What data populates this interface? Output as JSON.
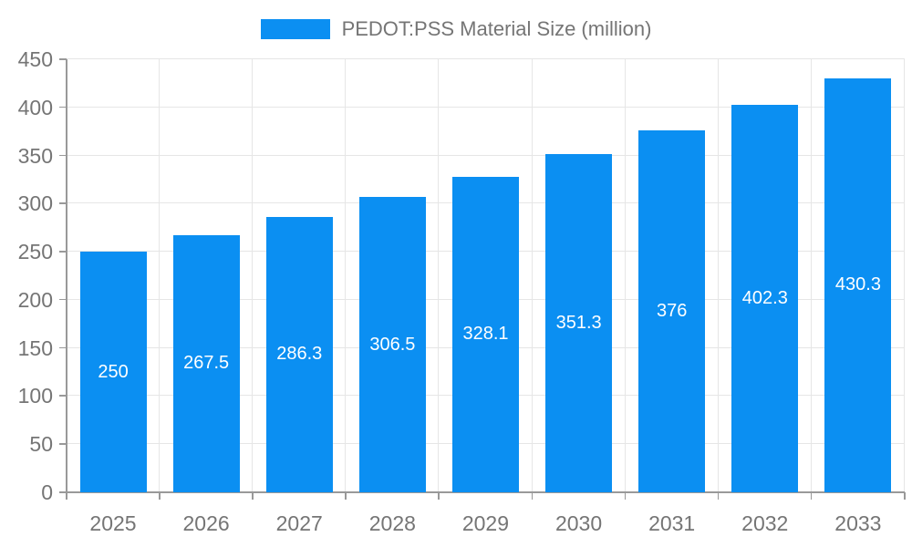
{
  "legend": {
    "label": "PEDOT:PSS Material Size (million)"
  },
  "colors": {
    "bar": "#0b8ff2",
    "bar_label": "#ffffff",
    "axis": "#999999",
    "grid": "#e6e6e6",
    "text": "#757575"
  },
  "chart_data": {
    "type": "bar",
    "title": "PEDOT:PSS Material Size (million)",
    "categories": [
      "2025",
      "2026",
      "2027",
      "2028",
      "2029",
      "2030",
      "2031",
      "2032",
      "2033"
    ],
    "values": [
      250,
      267.5,
      286.3,
      306.5,
      328.1,
      351.3,
      376,
      402.3,
      430.3
    ],
    "xlabel": "",
    "ylabel": "",
    "ylim": [
      0,
      450
    ],
    "ytick_step": 50,
    "grid": true,
    "legend_position": "top-center",
    "bar_value_labels": "inside-center"
  }
}
